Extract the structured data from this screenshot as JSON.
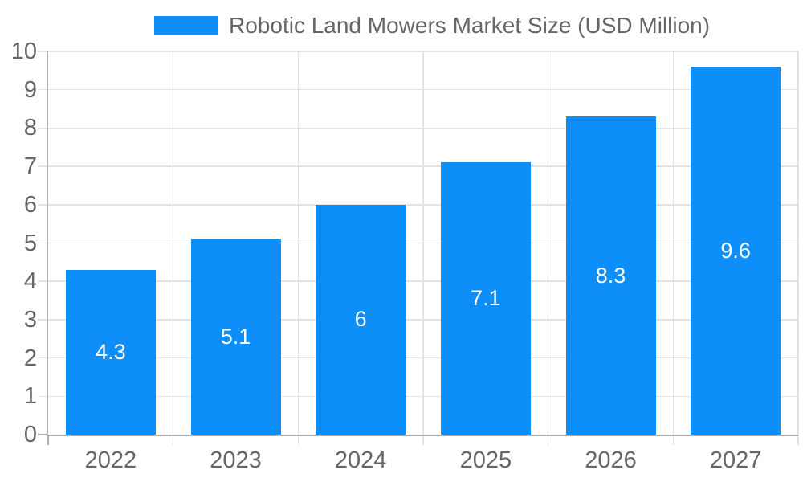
{
  "chart_data": {
    "type": "bar",
    "title": "Robotic Land Mowers Market Size (USD Million)",
    "categories": [
      "2022",
      "2023",
      "2024",
      "2025",
      "2026",
      "2027"
    ],
    "values": [
      4.3,
      5.1,
      6,
      7.1,
      8.3,
      9.6
    ],
    "value_labels": [
      "4.3",
      "5.1",
      "6",
      "7.1",
      "8.3",
      "9.6"
    ],
    "xlabel": "",
    "ylabel": "",
    "ylim": [
      0,
      10
    ],
    "y_ticks": [
      0,
      1,
      2,
      3,
      4,
      5,
      6,
      7,
      8,
      9,
      10
    ],
    "grid": true,
    "legend_position": "top",
    "colors": {
      "bar": "#0d8ef8",
      "value_label": "#ffffff",
      "axis_text": "#666666",
      "legend_text": "#666666",
      "grid_line": "#e3e3e3",
      "axis_line": "#b0b0b0"
    }
  }
}
